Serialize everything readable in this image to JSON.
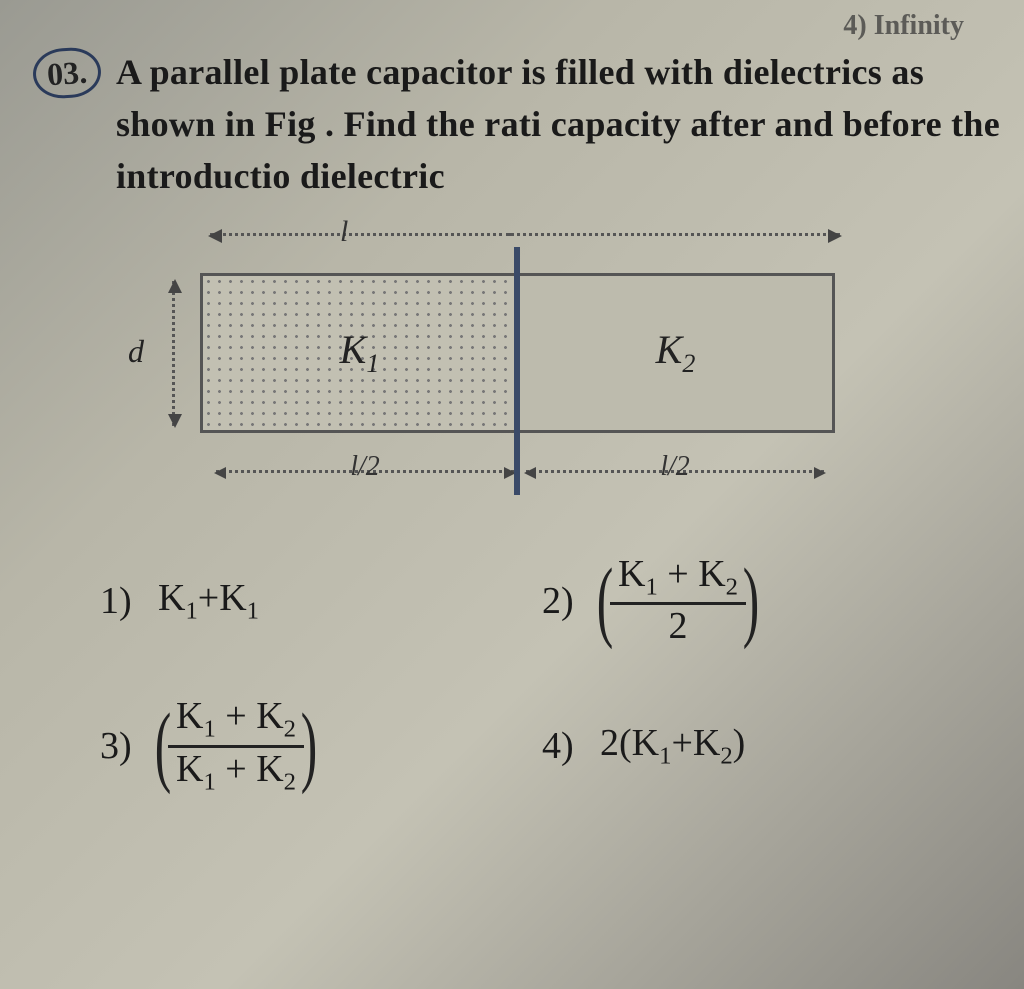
{
  "prev_option": "4) Infinity",
  "question": {
    "number": "03.",
    "text": "A parallel plate capacitor is filled with dielectrics as shown in Fig . Find the rati capacity after and before the introductio dielectric"
  },
  "figure": {
    "top_dim_label": "l",
    "left_dim_label": "d",
    "left_region_label": "K",
    "left_region_sub": "1",
    "right_region_label": "K",
    "right_region_sub": "2",
    "bottom_left_label": "l/2",
    "bottom_right_label": "l/2"
  },
  "options": {
    "o1": {
      "num": "1)",
      "text_a": "K",
      "sub_a": "1",
      "plus": "+K",
      "sub_b": "1"
    },
    "o2": {
      "num": "2)",
      "frac_num_a": "K",
      "frac_num_sa": "1",
      "frac_num_plus": " + K",
      "frac_num_sb": "2",
      "frac_den": "2"
    },
    "o3": {
      "num": "3)",
      "top_a": "K",
      "top_sa": "1",
      "top_plus": " + K",
      "top_sb": "2",
      "bot_a": "K",
      "bot_sa": "1",
      "bot_plus": " + K",
      "bot_sb": "2"
    },
    "o4": {
      "num": "4)",
      "pre": "2(K",
      "sa": "1",
      "mid": "+K",
      "sb": "2",
      "post": ")"
    }
  },
  "colors": {
    "ink": "#1a1a1a",
    "pen_circle": "#2a3a5a",
    "divider_bar": "#3a4a68",
    "diagram_border": "#555555",
    "paper_light": "#c4c2b4",
    "paper_dark": "#9a9a92"
  }
}
